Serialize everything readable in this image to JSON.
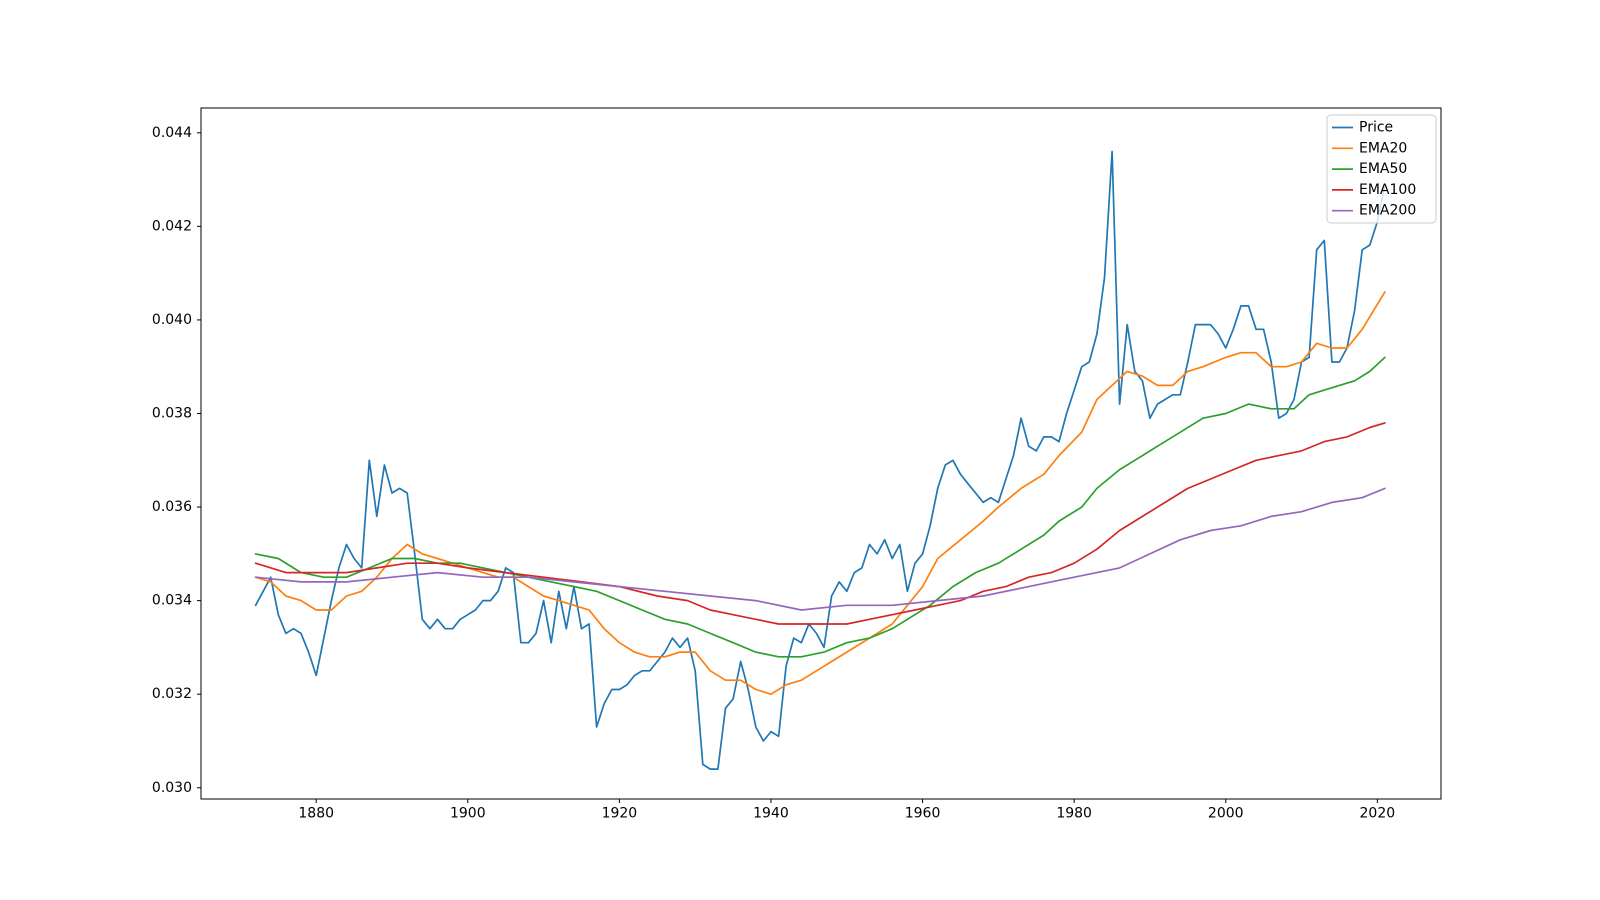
{
  "figure": {
    "background": "#ffffff",
    "axis_color": "#000000"
  },
  "chart_data": {
    "type": "line",
    "title": "",
    "xlabel": "",
    "ylabel": "",
    "grid": false,
    "xlim": [
      1864.8,
      2028.4
    ],
    "ylim": [
      0.02976,
      0.04453
    ],
    "x_ticks": {
      "values": [
        1880,
        1900,
        1920,
        1940,
        1960,
        1980,
        2000,
        2020
      ],
      "labels": [
        "1880",
        "1900",
        "1920",
        "1940",
        "1960",
        "1980",
        "2000",
        "2020"
      ]
    },
    "y_ticks": {
      "values": [
        0.03,
        0.032,
        0.034,
        0.036,
        0.038,
        0.04,
        0.042,
        0.044
      ],
      "labels": [
        "0.030",
        "0.032",
        "0.034",
        "0.036",
        "0.038",
        "0.040",
        "0.042",
        "0.044"
      ]
    },
    "legend": {
      "position": "upper-right",
      "border_color": "#cccccc",
      "bg_color": "#ffffff",
      "bg_opacity": 0.8,
      "entries": [
        "Price",
        "EMA20",
        "EMA50",
        "EMA100",
        "EMA200"
      ]
    },
    "series": [
      {
        "name": "Price",
        "color": "#1f77b4",
        "x_start": 1872,
        "x_step": 1,
        "values": [
          0.0339,
          0.0342,
          0.0345,
          0.0337,
          0.0333,
          0.0334,
          0.0333,
          0.0329,
          0.0324,
          0.0332,
          0.034,
          0.0347,
          0.0352,
          0.0349,
          0.0347,
          0.037,
          0.0358,
          0.0369,
          0.0363,
          0.0364,
          0.0363,
          0.035,
          0.0336,
          0.0334,
          0.0336,
          0.0334,
          0.0334,
          0.0336,
          0.0337,
          0.0338,
          0.034,
          0.034,
          0.0342,
          0.0347,
          0.0346,
          0.0331,
          0.0331,
          0.0333,
          0.034,
          0.0331,
          0.0342,
          0.0334,
          0.0343,
          0.0334,
          0.0335,
          0.0313,
          0.0318,
          0.0321,
          0.0321,
          0.0322,
          0.0324,
          0.0325,
          0.0325,
          0.0327,
          0.0329,
          0.0332,
          0.033,
          0.0332,
          0.0325,
          0.0305,
          0.0304,
          0.0304,
          0.0317,
          0.0319,
          0.0327,
          0.0321,
          0.0313,
          0.031,
          0.0312,
          0.0311,
          0.0326,
          0.0332,
          0.0331,
          0.0335,
          0.0333,
          0.033,
          0.0341,
          0.0344,
          0.0342,
          0.0346,
          0.0347,
          0.0352,
          0.035,
          0.0353,
          0.0349,
          0.0352,
          0.0342,
          0.0348,
          0.035,
          0.0356,
          0.0364,
          0.0369,
          0.037,
          0.0367,
          0.0365,
          0.0363,
          0.0361,
          0.0362,
          0.0361,
          0.0366,
          0.0371,
          0.0379,
          0.0373,
          0.0372,
          0.0375,
          0.0375,
          0.0374,
          0.038,
          0.0385,
          0.039,
          0.0391,
          0.0397,
          0.0409,
          0.0436,
          0.0382,
          0.0399,
          0.0389,
          0.0387,
          0.0379,
          0.0382,
          0.0383,
          0.0384,
          0.0384,
          0.0391,
          0.0399,
          0.0399,
          0.0399,
          0.0397,
          0.0394,
          0.0398,
          0.0403,
          0.0403,
          0.0398,
          0.0398,
          0.0391,
          0.0379,
          0.038,
          0.0383,
          0.0391,
          0.0392,
          0.0415,
          0.0417,
          0.0391,
          0.0391,
          0.0394,
          0.0402,
          0.0415,
          0.0416,
          0.0421,
          0.0429
        ]
      },
      {
        "name": "EMA20",
        "color": "#ff7f0e",
        "x": [
          1872,
          1874,
          1876,
          1878,
          1880,
          1882,
          1884,
          1886,
          1888,
          1890,
          1892,
          1894,
          1896,
          1898,
          1900,
          1902,
          1904,
          1906,
          1908,
          1910,
          1912,
          1914,
          1916,
          1918,
          1920,
          1922,
          1924,
          1926,
          1928,
          1930,
          1932,
          1934,
          1936,
          1938,
          1940,
          1942,
          1944,
          1946,
          1948,
          1950,
          1953,
          1956,
          1958,
          1960,
          1962,
          1965,
          1968,
          1970,
          1973,
          1976,
          1978,
          1981,
          1983,
          1985,
          1987,
          1989,
          1991,
          1993,
          1995,
          1997,
          2000,
          2002,
          2004,
          2006,
          2008,
          2010,
          2012,
          2014,
          2016,
          2018,
          2021
        ],
        "values": [
          0.0345,
          0.0344,
          0.0341,
          0.034,
          0.0338,
          0.0338,
          0.0341,
          0.0342,
          0.0345,
          0.0349,
          0.0352,
          0.035,
          0.0349,
          0.0348,
          0.0347,
          0.0346,
          0.0345,
          0.0345,
          0.0343,
          0.0341,
          0.034,
          0.0339,
          0.0338,
          0.0334,
          0.0331,
          0.0329,
          0.0328,
          0.0328,
          0.0329,
          0.0329,
          0.0325,
          0.0323,
          0.0323,
          0.0321,
          0.032,
          0.0322,
          0.0323,
          0.0325,
          0.0327,
          0.0329,
          0.0332,
          0.0335,
          0.0339,
          0.0343,
          0.0349,
          0.0353,
          0.0357,
          0.036,
          0.0364,
          0.0367,
          0.0371,
          0.0376,
          0.0383,
          0.0386,
          0.0389,
          0.0388,
          0.0386,
          0.0386,
          0.0389,
          0.039,
          0.0392,
          0.0393,
          0.0393,
          0.039,
          0.039,
          0.0391,
          0.0395,
          0.0394,
          0.0394,
          0.0398,
          0.0406
        ]
      },
      {
        "name": "EMA50",
        "color": "#2ca02c",
        "x": [
          1872,
          1875,
          1878,
          1881,
          1884,
          1887,
          1890,
          1893,
          1896,
          1899,
          1902,
          1905,
          1908,
          1911,
          1914,
          1917,
          1920,
          1923,
          1926,
          1929,
          1932,
          1935,
          1938,
          1941,
          1944,
          1947,
          1950,
          1953,
          1956,
          1958,
          1961,
          1964,
          1967,
          1970,
          1973,
          1976,
          1978,
          1981,
          1983,
          1986,
          1988,
          1991,
          1994,
          1997,
          2000,
          2003,
          2006,
          2009,
          2011,
          2013,
          2015,
          2017,
          2019,
          2021
        ],
        "values": [
          0.035,
          0.0349,
          0.0346,
          0.0345,
          0.0345,
          0.0347,
          0.0349,
          0.0349,
          0.0348,
          0.0348,
          0.0347,
          0.0346,
          0.0345,
          0.0344,
          0.0343,
          0.0342,
          0.034,
          0.0338,
          0.0336,
          0.0335,
          0.0333,
          0.0331,
          0.0329,
          0.0328,
          0.0328,
          0.0329,
          0.0331,
          0.0332,
          0.0334,
          0.0336,
          0.0339,
          0.0343,
          0.0346,
          0.0348,
          0.0351,
          0.0354,
          0.0357,
          0.036,
          0.0364,
          0.0368,
          0.037,
          0.0373,
          0.0376,
          0.0379,
          0.038,
          0.0382,
          0.0381,
          0.0381,
          0.0384,
          0.0385,
          0.0386,
          0.0387,
          0.0389,
          0.0392
        ]
      },
      {
        "name": "EMA100",
        "color": "#d62728",
        "x": [
          1872,
          1876,
          1880,
          1884,
          1888,
          1892,
          1896,
          1900,
          1905,
          1910,
          1915,
          1920,
          1925,
          1929,
          1932,
          1935,
          1938,
          1941,
          1945,
          1950,
          1953,
          1956,
          1959,
          1962,
          1965,
          1968,
          1971,
          1974,
          1977,
          1980,
          1983,
          1986,
          1989,
          1992,
          1995,
          1998,
          2001,
          2004,
          2007,
          2010,
          2013,
          2016,
          2019,
          2021
        ],
        "values": [
          0.0348,
          0.0346,
          0.0346,
          0.0346,
          0.0347,
          0.0348,
          0.0348,
          0.0347,
          0.0346,
          0.0345,
          0.0344,
          0.0343,
          0.0341,
          0.034,
          0.0338,
          0.0337,
          0.0336,
          0.0335,
          0.0335,
          0.0335,
          0.0336,
          0.0337,
          0.0338,
          0.0339,
          0.034,
          0.0342,
          0.0343,
          0.0345,
          0.0346,
          0.0348,
          0.0351,
          0.0355,
          0.0358,
          0.0361,
          0.0364,
          0.0366,
          0.0368,
          0.037,
          0.0371,
          0.0372,
          0.0374,
          0.0375,
          0.0377,
          0.0378
        ]
      },
      {
        "name": "EMA200",
        "color": "#9467bd",
        "x": [
          1872,
          1878,
          1884,
          1890,
          1896,
          1902,
          1908,
          1914,
          1920,
          1926,
          1932,
          1938,
          1944,
          1950,
          1956,
          1962,
          1968,
          1974,
          1980,
          1986,
          1990,
          1994,
          1998,
          2002,
          2006,
          2010,
          2014,
          2018,
          2021
        ],
        "values": [
          0.0345,
          0.0344,
          0.0344,
          0.0345,
          0.0346,
          0.0345,
          0.0345,
          0.0344,
          0.0343,
          0.0342,
          0.0341,
          0.034,
          0.0338,
          0.0339,
          0.0339,
          0.034,
          0.0341,
          0.0343,
          0.0345,
          0.0347,
          0.035,
          0.0353,
          0.0355,
          0.0356,
          0.0358,
          0.0359,
          0.0361,
          0.0362,
          0.0364
        ]
      }
    ]
  }
}
